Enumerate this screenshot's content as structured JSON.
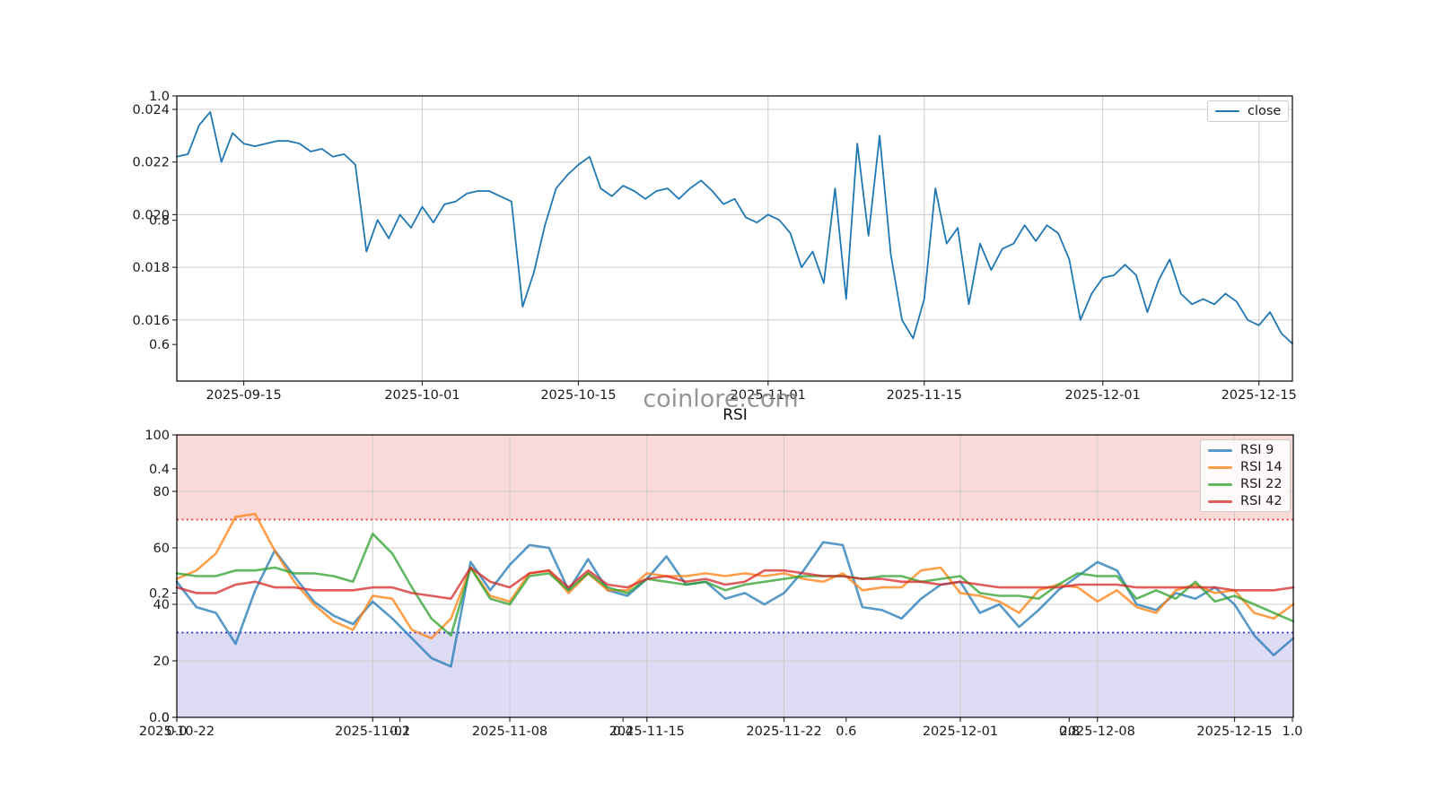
{
  "watermark": "coinlore.com",
  "overlay_axis": {
    "note": "transparent 0-1 axis overlapping both subplots",
    "positions": [
      0.0,
      0.2,
      0.4,
      0.6,
      0.8,
      1.0
    ],
    "x_tick_labels": [
      "0.0",
      "0.2",
      "0.4",
      "0.6",
      "0.8",
      "1.0"
    ],
    "y_tick_labels": [
      "0.0",
      "0.2",
      "0.4",
      "0.6",
      "0.8",
      "1.0"
    ]
  },
  "chart_data": "see charts",
  "charts": [
    {
      "name": "price",
      "type": "line",
      "title": "",
      "grid": true,
      "legend": {
        "position": "upper right",
        "entries": [
          "close"
        ]
      },
      "ylim": [
        0.01368,
        0.02451
      ],
      "y_tick_values": [
        0.016,
        0.018,
        0.02,
        0.022,
        0.024
      ],
      "y_ticks": [
        "0.016",
        "0.018",
        "0.020",
        "0.022",
        "0.024"
      ],
      "x_start": "2025-09-09",
      "x_end": "2025-12-18",
      "x_freq": "daily",
      "x_ticks": [
        "2025-09-15",
        "2025-10-01",
        "2025-10-15",
        "2025-11-01",
        "2025-11-15",
        "2025-12-01",
        "2025-12-15"
      ],
      "series": [
        {
          "name": "close",
          "color": "#1f77b4",
          "opacity": 1,
          "width": 1.8,
          "values": [
            0.0222,
            0.0223,
            0.0234,
            0.0239,
            0.022,
            0.0231,
            0.0227,
            0.0226,
            0.0227,
            0.0228,
            0.0228,
            0.0227,
            0.0224,
            0.0225,
            0.0222,
            0.0223,
            0.0219,
            0.0186,
            0.0198,
            0.0191,
            0.02,
            0.0195,
            0.0203,
            0.0197,
            0.0204,
            0.0205,
            0.0208,
            0.0209,
            0.0209,
            0.0207,
            0.0205,
            0.0165,
            0.0178,
            0.0196,
            0.021,
            0.0215,
            0.0219,
            0.0222,
            0.021,
            0.0207,
            0.0211,
            0.0209,
            0.0206,
            0.0209,
            0.021,
            0.0206,
            0.021,
            0.0213,
            0.0209,
            0.0204,
            0.0206,
            0.0199,
            0.0197,
            0.02,
            0.0198,
            0.0193,
            0.018,
            0.0186,
            0.0174,
            0.021,
            0.0168,
            0.0227,
            0.0192,
            0.023,
            0.0185,
            0.016,
            0.0153,
            0.0168,
            0.021,
            0.0189,
            0.0195,
            0.0166,
            0.0189,
            0.0179,
            0.0187,
            0.0189,
            0.0196,
            0.019,
            0.0196,
            0.0193,
            0.0183,
            0.016,
            0.017,
            0.0176,
            0.0177,
            0.0181,
            0.0177,
            0.0163,
            0.0175,
            0.0183,
            0.017,
            0.0166,
            0.0168,
            0.0166,
            0.017,
            0.0167,
            0.016,
            0.0158,
            0.0163,
            0.0155,
            0.0151
          ]
        }
      ]
    },
    {
      "name": "rsi",
      "type": "line",
      "title": "RSI",
      "grid": true,
      "legend": {
        "position": "upper right",
        "entries": [
          "RSI 9",
          "RSI 14",
          "RSI 22",
          "RSI 42"
        ]
      },
      "ylim": [
        0,
        100
      ],
      "y_tick_values": [
        0,
        20,
        40,
        60,
        80,
        100
      ],
      "y_ticks": [
        "0",
        "20",
        "40",
        "60",
        "80",
        "100"
      ],
      "x_start": "2025-10-22",
      "x_end": "2025-12-18",
      "x_freq": "daily",
      "x_ticks": [
        "2025-10-22",
        "2025-11-01",
        "2025-11-08",
        "2025-11-15",
        "2025-11-22",
        "2025-12-01",
        "2025-12-08",
        "2025-12-15"
      ],
      "bands": [
        {
          "name": "overbought-band",
          "from": 70,
          "to": 100,
          "color": "#fad9d9"
        },
        {
          "name": "oversold-band",
          "from": 0,
          "to": 30,
          "color": "#dedcf5"
        }
      ],
      "hlines": [
        {
          "name": "level-70-line",
          "y": 70,
          "color": "#e53333",
          "style": "dotted"
        },
        {
          "name": "level-30-line",
          "y": 30,
          "color": "#2929d6",
          "style": "dotted"
        }
      ],
      "series": [
        {
          "name": "RSI 9",
          "color": "#1f77b4",
          "opacity": 0.75,
          "width": 2.6,
          "values": [
            48,
            39,
            37,
            26,
            45,
            59,
            50,
            41,
            36,
            33,
            41,
            35,
            28,
            21,
            18,
            55,
            45,
            54,
            61,
            60,
            45,
            56,
            45,
            43,
            49,
            57,
            47,
            48,
            42,
            44,
            40,
            44,
            52,
            62,
            61,
            39,
            38,
            35,
            42,
            47,
            48,
            37,
            40,
            32,
            38,
            45,
            50,
            55,
            52,
            40,
            38,
            44,
            42,
            46,
            40,
            29,
            22,
            28
          ]
        },
        {
          "name": "RSI 14",
          "color": "#ff7f0e",
          "opacity": 0.75,
          "width": 2.6,
          "values": [
            49,
            52,
            58,
            71,
            72,
            59,
            48,
            40,
            34,
            31,
            43,
            42,
            31,
            28,
            35,
            53,
            43,
            41,
            51,
            52,
            44,
            51,
            45,
            45,
            51,
            50,
            50,
            51,
            50,
            51,
            50,
            51,
            49,
            48,
            51,
            45,
            46,
            46,
            52,
            53,
            44,
            43,
            41,
            37,
            45,
            47,
            46,
            41,
            45,
            39,
            37,
            45,
            47,
            44,
            45,
            37,
            35,
            40
          ]
        },
        {
          "name": "RSI 22",
          "color": "#2ca02c",
          "opacity": 0.75,
          "width": 2.6,
          "values": [
            51,
            50,
            50,
            52,
            52,
            53,
            51,
            51,
            50,
            48,
            65,
            58,
            46,
            35,
            29,
            53,
            42,
            40,
            50,
            51,
            45,
            51,
            46,
            44,
            49,
            48,
            47,
            48,
            45,
            47,
            48,
            49,
            50,
            50,
            50,
            49,
            50,
            50,
            48,
            49,
            50,
            44,
            43,
            43,
            42,
            47,
            51,
            50,
            50,
            42,
            45,
            42,
            48,
            41,
            43,
            40,
            37,
            34
          ]
        },
        {
          "name": "RSI 42",
          "color": "#d62728",
          "opacity": 0.75,
          "width": 2.6,
          "values": [
            46,
            44,
            44,
            47,
            48,
            46,
            46,
            45,
            45,
            45,
            46,
            46,
            44,
            43,
            42,
            53,
            48,
            46,
            51,
            52,
            46,
            52,
            47,
            46,
            49,
            50,
            48,
            49,
            47,
            48,
            52,
            52,
            51,
            50,
            50,
            49,
            49,
            48,
            48,
            47,
            48,
            47,
            46,
            46,
            46,
            46,
            47,
            47,
            47,
            46,
            46,
            46,
            46,
            46,
            45,
            45,
            45,
            46
          ]
        }
      ]
    }
  ]
}
